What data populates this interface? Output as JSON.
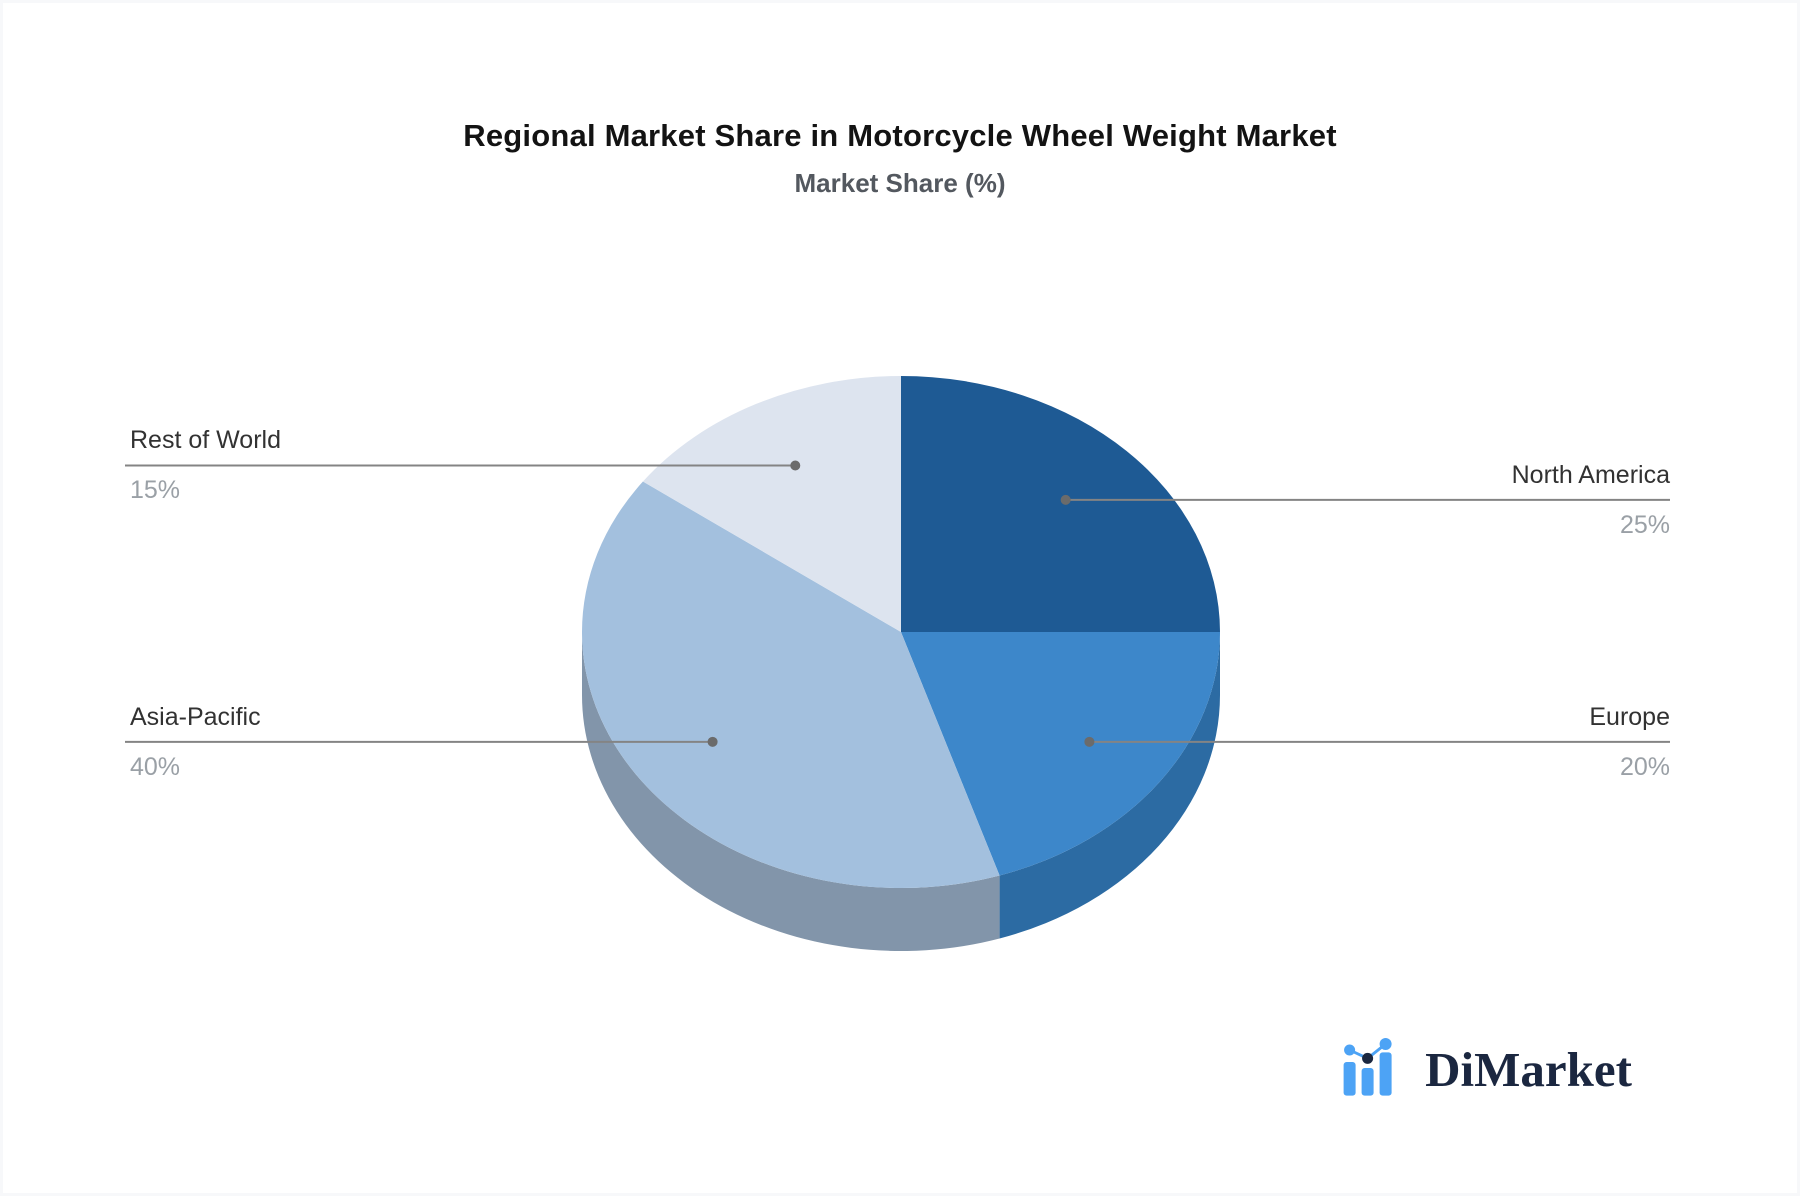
{
  "header": {
    "title": "Regional Market Share in Motorcycle Wheel Weight Market",
    "subtitle": "Market Share (%)"
  },
  "chart_data": {
    "type": "pie",
    "title": "Regional Market Share in Motorcycle Wheel Weight Market",
    "subtitle": "Market Share (%)",
    "unit": "%",
    "start_angle": "12 o'clock",
    "direction": "clockwise",
    "style": "3d",
    "legend_position": "none",
    "grid": false,
    "slices": [
      {
        "label": "North America",
        "value": 25,
        "pct_label": "25%",
        "color": "#1e5a94",
        "side_color": "#2c6ba3",
        "label_side": "right"
      },
      {
        "label": "Europe",
        "value": 20,
        "pct_label": "20%",
        "color": "#3d87ca",
        "side_color": "#2c6ba3",
        "label_side": "right"
      },
      {
        "label": "Asia-Pacific",
        "value": 40,
        "pct_label": "40%",
        "color": "#a3c0de",
        "side_color": "#8295aa",
        "label_side": "left"
      },
      {
        "label": "Rest of World",
        "value": 15,
        "pct_label": "15%",
        "color": "#dde4ef",
        "side_color": "#aeb9c8",
        "label_side": "left"
      }
    ],
    "leader_line_color": "#848484",
    "leader_dot_color": "#6b6b6b"
  },
  "branding": {
    "logo_text": "DiMarket",
    "logo_icon": "bar-line-chart-icon",
    "accent_blue": "#4da3f5",
    "navy": "#1b2740"
  }
}
